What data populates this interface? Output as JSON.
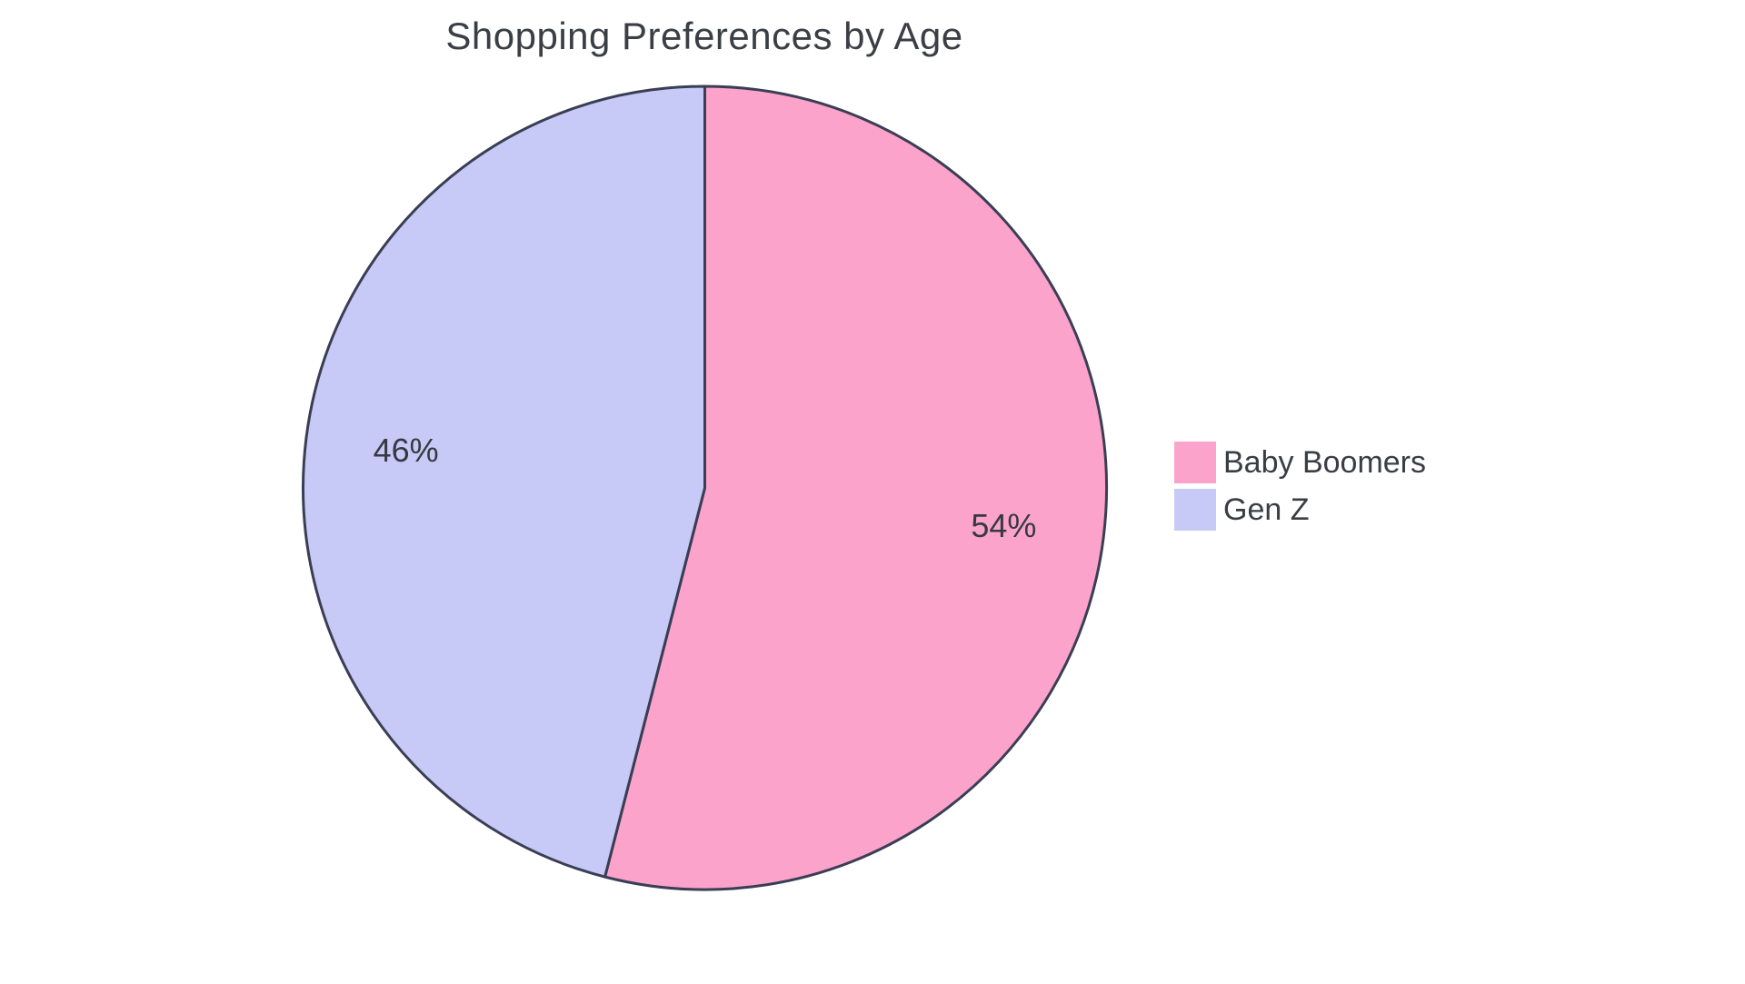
{
  "page": {
    "background": "#ffffff"
  },
  "chart_data": {
    "type": "pie",
    "title": "Shopping Preferences by Age",
    "slices": [
      {
        "label": "Baby Boomers",
        "value": 54,
        "percent_label": "54%",
        "color": "#FCA3CC"
      },
      {
        "label": "Gen Z",
        "value": 46,
        "percent_label": "46%",
        "color": "#C7C9F6"
      }
    ],
    "start_angle_deg": 0,
    "direction": "clockwise",
    "legend_position": "right",
    "stroke_color": "#3A3E54",
    "stroke_width": 3,
    "title_color": "#3B3E45",
    "label_color": "#363940",
    "legend_text_color": "#3A3D44"
  }
}
